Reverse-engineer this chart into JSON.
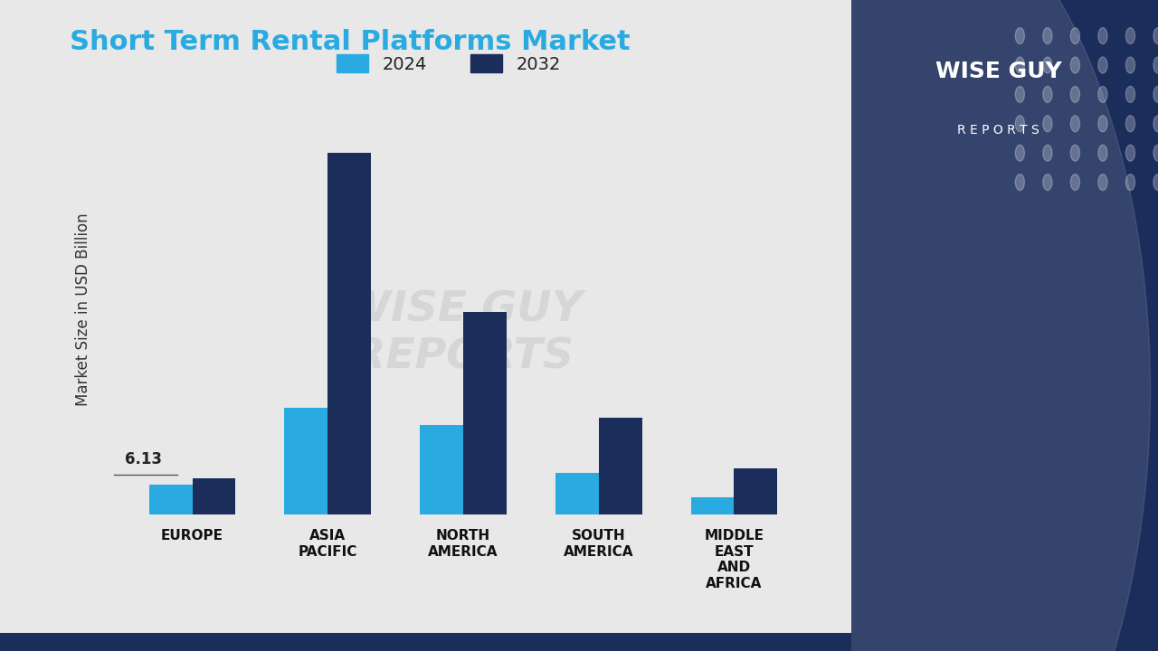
{
  "title": "Short Term Rental Platforms Market",
  "ylabel": "Market Size in USD Billion",
  "categories": [
    "EUROPE",
    "ASIA\nPACIFIC",
    "NORTH\nAMERICA",
    "SOUTH\nAMERICA",
    "MIDDLE\nEAST\nAND\nAFRICA"
  ],
  "values_2024": [
    6.13,
    22.0,
    18.5,
    8.5,
    3.5
  ],
  "values_2032": [
    7.5,
    75.0,
    42.0,
    20.0,
    9.5
  ],
  "color_2024": "#29ABE2",
  "color_2032": "#1B2D5B",
  "europe_label": "6.13",
  "background_color": "#E8E8E8",
  "title_color": "#29ABE2",
  "label_color": "#333333",
  "legend_labels": [
    "2024",
    "2032"
  ],
  "bar_width": 0.32,
  "footer_color": "#1B2D5B",
  "ylim_max": 85,
  "right_panel_color": "#1B2D5B",
  "logo_line1": "WISE GUY",
  "logo_line2": "R E P O R T S"
}
